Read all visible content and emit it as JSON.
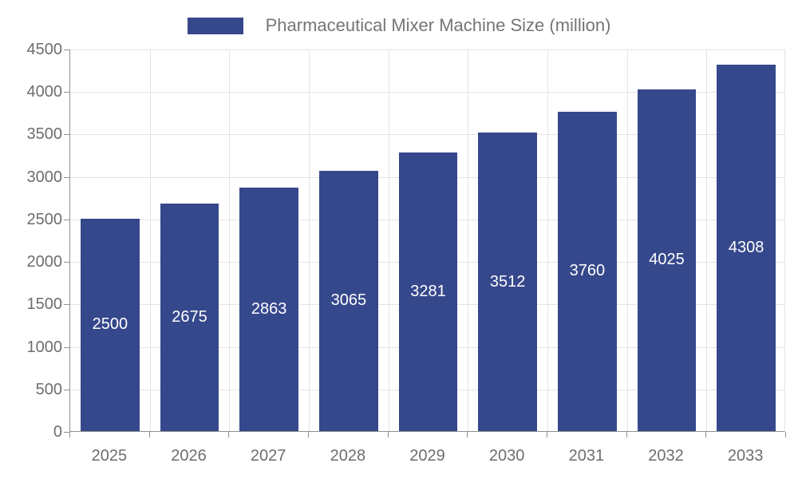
{
  "legend": {
    "label": "Pharmaceutical Mixer Machine Size (million)",
    "swatch_color": "#36488c"
  },
  "chart_data": {
    "type": "bar",
    "title": "Pharmaceutical Mixer Machine Size (million)",
    "categories": [
      "2025",
      "2026",
      "2027",
      "2028",
      "2029",
      "2030",
      "2031",
      "2032",
      "2033"
    ],
    "values": [
      2500,
      2675,
      2863,
      3065,
      3281,
      3512,
      3760,
      4025,
      4308
    ],
    "xlabel": "",
    "ylabel": "",
    "ylim": [
      0,
      4500
    ],
    "yticks": [
      0,
      500,
      1000,
      1500,
      2000,
      2500,
      3000,
      3500,
      4000,
      4500
    ],
    "grid": true,
    "legend_position": "top-center",
    "bar_color": "#36488c",
    "value_label_color": "#ffffff",
    "axis_text_color": "#6e6e6e",
    "gridline_color": "#e3e3e3",
    "axis_line_color": "#909090"
  }
}
